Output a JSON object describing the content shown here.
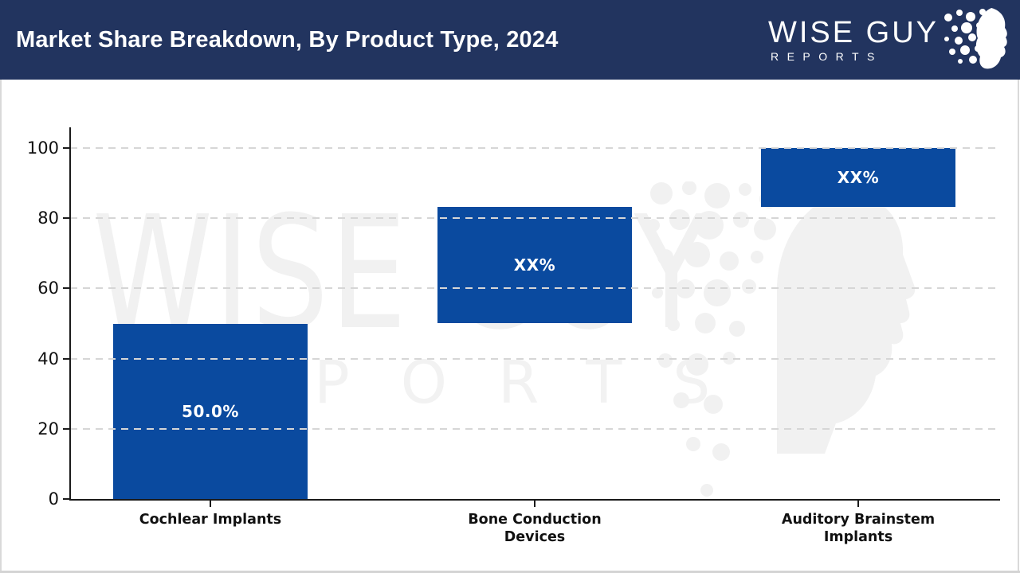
{
  "header": {
    "title": "Market Share Breakdown, By Product Type, 2024",
    "logo": {
      "name": "WISE GUY",
      "sub": "REPORTS"
    }
  },
  "watermark": {
    "line1": "WISE GUY",
    "line2": "REPORTS"
  },
  "chart_data": {
    "type": "bar",
    "subtype": "waterfall",
    "title": "Market Share Breakdown, By Product Type, 2024",
    "categories": [
      "Cochlear Implants",
      "Bone Conduction Devices",
      "Auditory Brainstem Implants"
    ],
    "bars": [
      {
        "category_lines": [
          "Cochlear Implants"
        ],
        "start": 0,
        "end": 50.0,
        "value": 50.0,
        "label": "50.0%"
      },
      {
        "category_lines": [
          "Bone Conduction",
          "Devices"
        ],
        "start": 50.0,
        "end": 83.3,
        "value": 33.3,
        "label": "XX%"
      },
      {
        "category_lines": [
          "Auditory Brainstem",
          "Implants"
        ],
        "start": 83.3,
        "end": 100.0,
        "value": 16.7,
        "label": "XX%"
      }
    ],
    "yticks": [
      0,
      20,
      40,
      60,
      80,
      100
    ],
    "ylim": [
      0,
      105
    ],
    "xlabel": "",
    "ylabel": "",
    "grid": "horizontal-dashed",
    "legend": "none",
    "bar_color": "#0a4a9f",
    "bar_label_color": "#ffffff"
  },
  "colors": {
    "header_bg": "#22345f",
    "bar": "#0a4a9f",
    "gridline": "#d6d6d6",
    "axis": "#1a1a1a",
    "watermark": "#f1f1f1",
    "frame": "#d9d9d9"
  }
}
